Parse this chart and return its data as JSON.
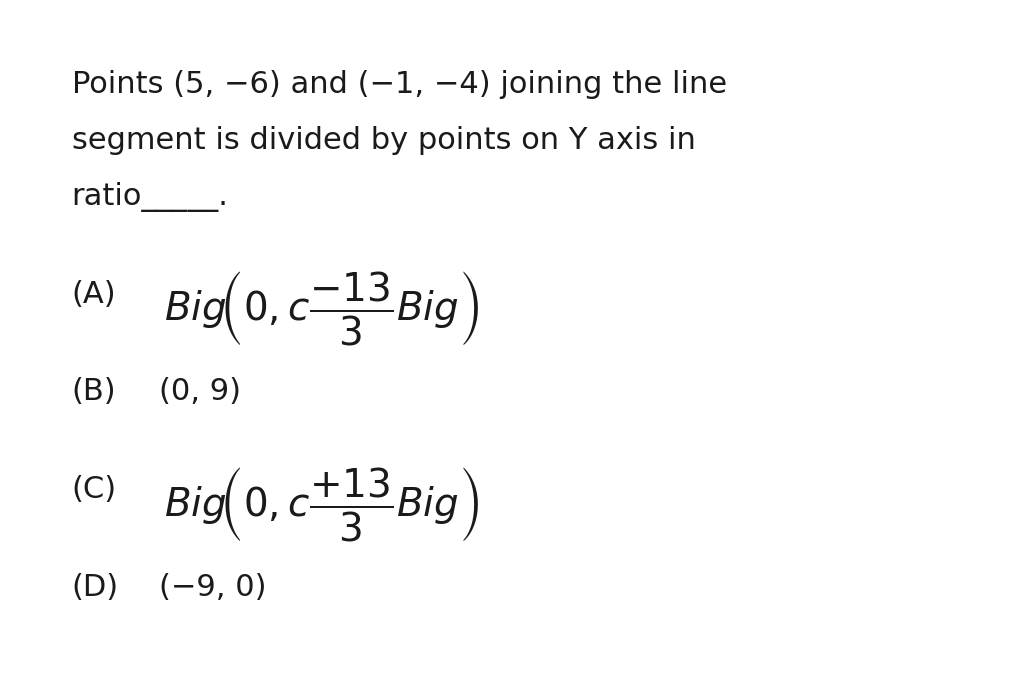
{
  "background_color": "#ffffff",
  "question_text_line1": "Points (5, −6) and (−1, −4) joining the line",
  "question_text_line2": "segment is divided by points on Y axis in",
  "question_text_line3": "ratio_____.",
  "option_A_label": "(A)",
  "option_A_math": "Big\\left(0,c\\dfrac{-13}{3}Big\\right)",
  "option_B_label": "(B)",
  "option_B_text": "(0, 9)",
  "option_C_label": "(C)",
  "option_C_math": "Big\\left(0,c\\dfrac{+13}{3}Big\\right)",
  "option_D_label": "(D)",
  "option_D_text": "(−9, 0)",
  "text_color": "#1a1a1a",
  "figsize": [
    10.24,
    6.99
  ],
  "dpi": 100
}
